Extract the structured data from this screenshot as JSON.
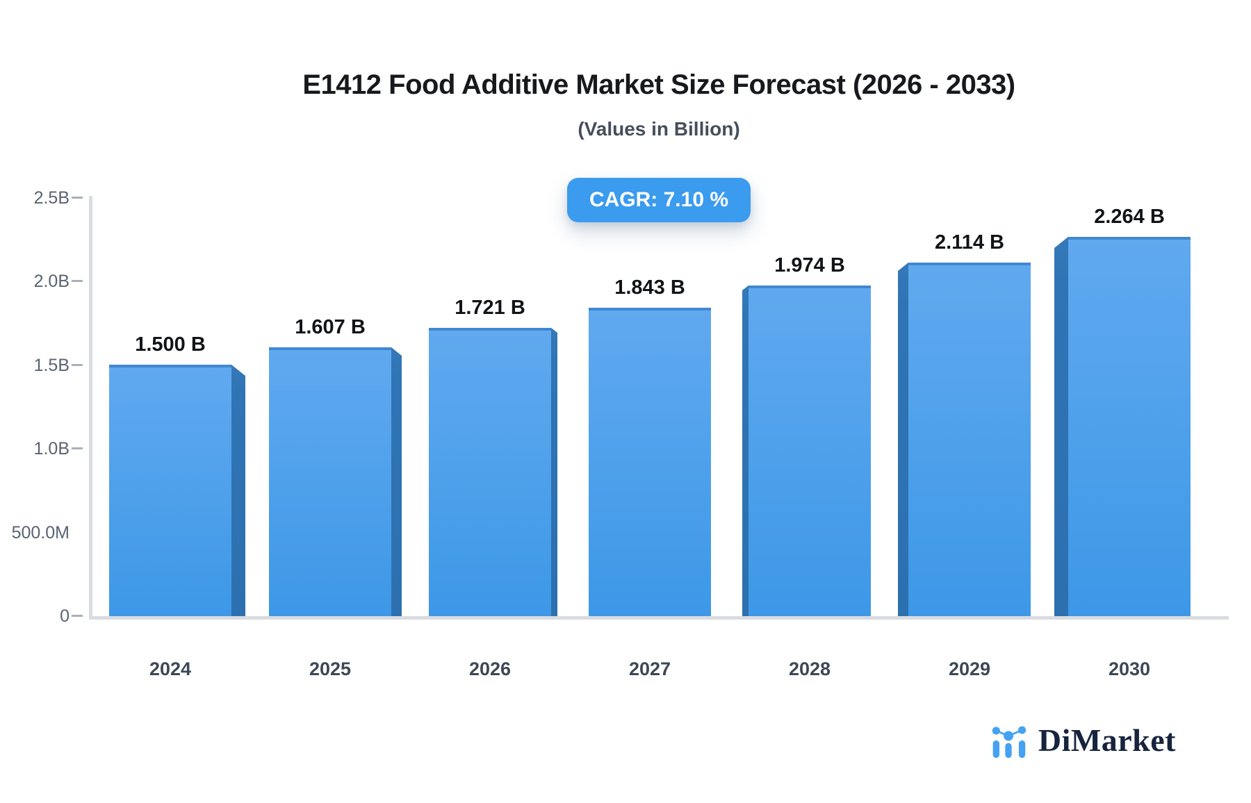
{
  "header": {
    "title": "E1412 Food Additive Market Size Forecast (2026 - 2033)",
    "subtitle": "(Values in Billion)",
    "cagr_badge": "CAGR: 7.10 %"
  },
  "chart_data": {
    "type": "bar",
    "title": "E1412 Food Additive Market Size Forecast (2026 - 2033)",
    "subtitle": "(Values in Billion)",
    "unit": "Billion",
    "cagr": "7.10 %",
    "categories": [
      "2024",
      "2025",
      "2026",
      "2027",
      "2028",
      "2029",
      "2030"
    ],
    "values": [
      1.5,
      1.607,
      1.721,
      1.843,
      1.974,
      2.114,
      2.264
    ],
    "value_labels": [
      "1.500 B",
      "1.607 B",
      "1.721 B",
      "1.843 B",
      "1.974 B",
      "2.114 B",
      "2.264 B"
    ],
    "ylim": [
      0,
      2.5
    ],
    "y_ticks": [
      {
        "label": "0",
        "value": 0,
        "dash": true
      },
      {
        "label": "500.0M",
        "value": 0.5,
        "dash": false
      },
      {
        "label": "1.0B",
        "value": 1.0,
        "dash": true
      },
      {
        "label": "1.5B",
        "value": 1.5,
        "dash": true
      },
      {
        "label": "2.0B",
        "value": 2.0,
        "dash": true
      },
      {
        "label": "2.5B",
        "value": 2.5,
        "dash": true
      }
    ],
    "grid": false,
    "legend": false
  },
  "branding": {
    "logo_text": "DiMarket"
  },
  "colors": {
    "bar_face_top": "#60A9EF",
    "bar_face_bottom": "#3D98E7",
    "bar_top_edge": "#4187D2",
    "bar_side": "#2F74B4",
    "badge_bg": "#3B9BEE",
    "badge_text": "#FFFFFF",
    "axis_line": "#D9DCE0",
    "tick_dash": "#A9B0B8",
    "y_label": "#5A6372",
    "x_label": "#3E4756",
    "value_label": "#111417",
    "title": "#17191C",
    "subtitle": "#454E5C",
    "logo_text": "#17243E",
    "logo_icon": "#45A2F2"
  }
}
